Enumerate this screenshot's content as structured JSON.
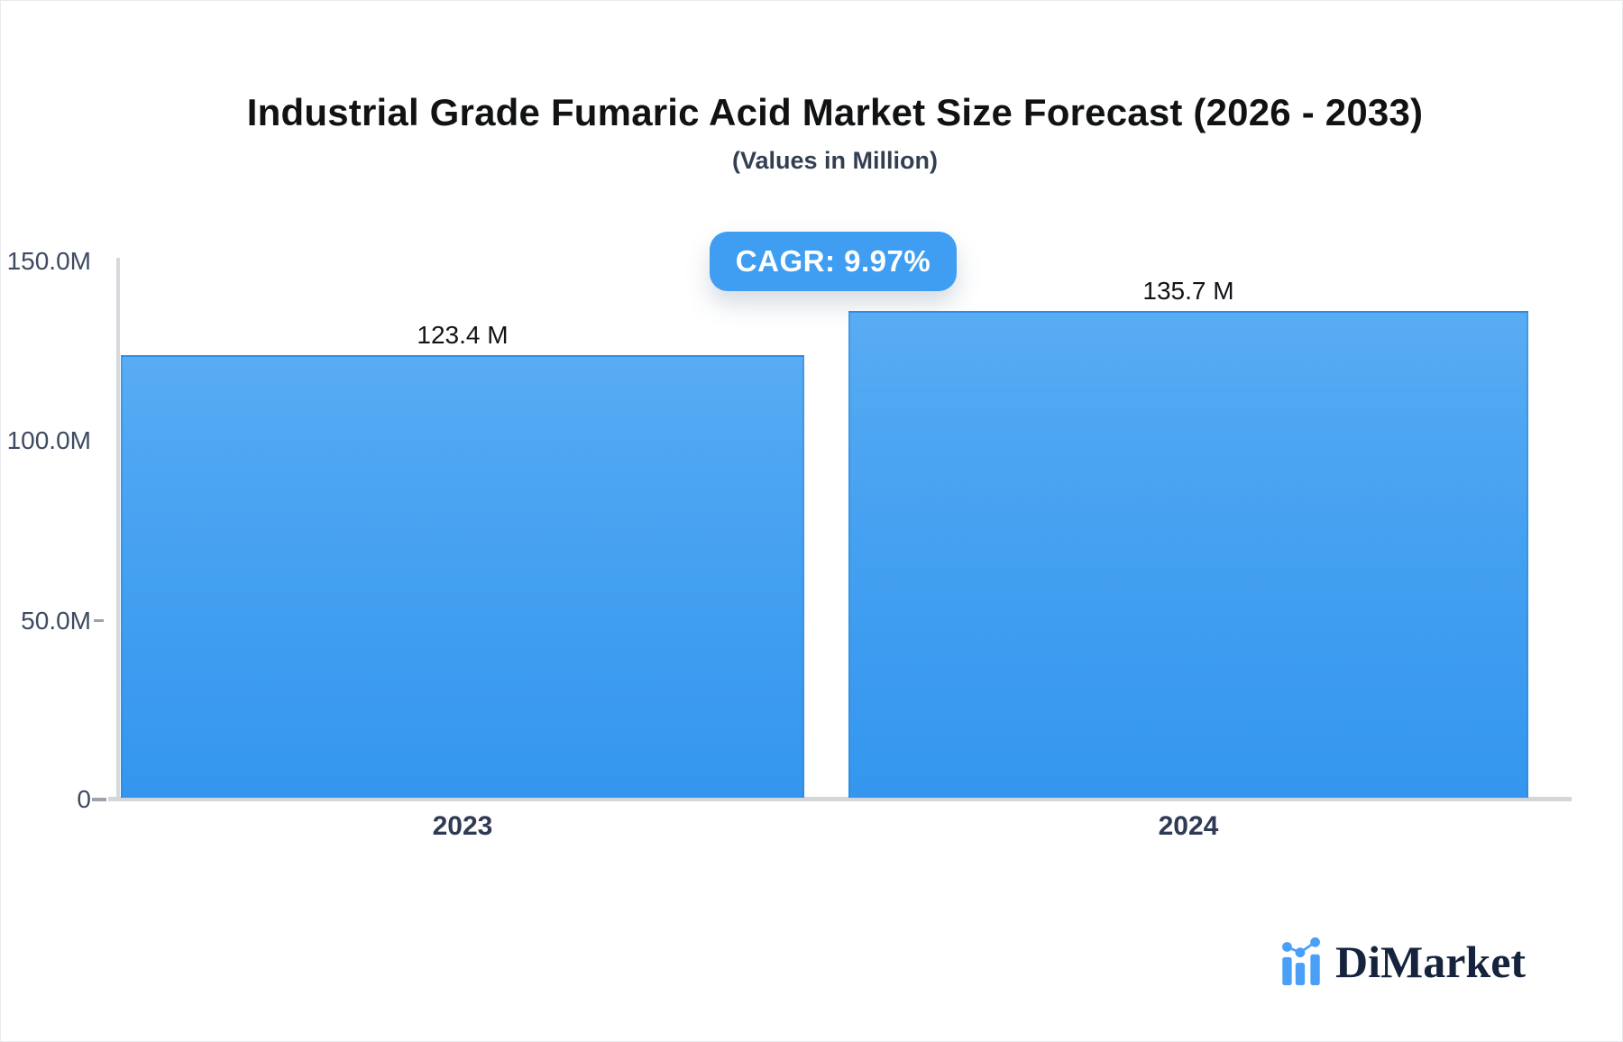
{
  "header": {
    "title": "Industrial Grade Fumaric Acid Market Size Forecast (2026 - 2033)",
    "subtitle": "(Values in Million)"
  },
  "badge": {
    "label": "CAGR: 9.97%"
  },
  "chart_data": {
    "type": "bar",
    "title": "Industrial Grade Fumaric Acid Market Size Forecast (2026 - 2033)",
    "subtitle": "(Values in Million)",
    "unit": "Million",
    "categories": [
      "2023",
      "2024"
    ],
    "values": [
      123.4,
      135.7
    ],
    "value_labels": [
      "123.4 M",
      "135.7 M"
    ],
    "cagr_percent": 9.97,
    "ylim": [
      0,
      150
    ],
    "yticks": [
      0,
      50,
      100,
      150
    ],
    "ytick_labels": [
      "0",
      "50.0M",
      "100.0M",
      "150.0M"
    ],
    "grid": false,
    "legend": false,
    "bar_color_top": "#58acf3",
    "bar_color_bottom": "#3496ef",
    "badge_color": "#3f9ef2"
  },
  "logo": {
    "text": "DiMarket",
    "icon": "mini-bar-chart-icon",
    "brand_blue": "#4aa0f7",
    "brand_navy": "#15233c"
  }
}
